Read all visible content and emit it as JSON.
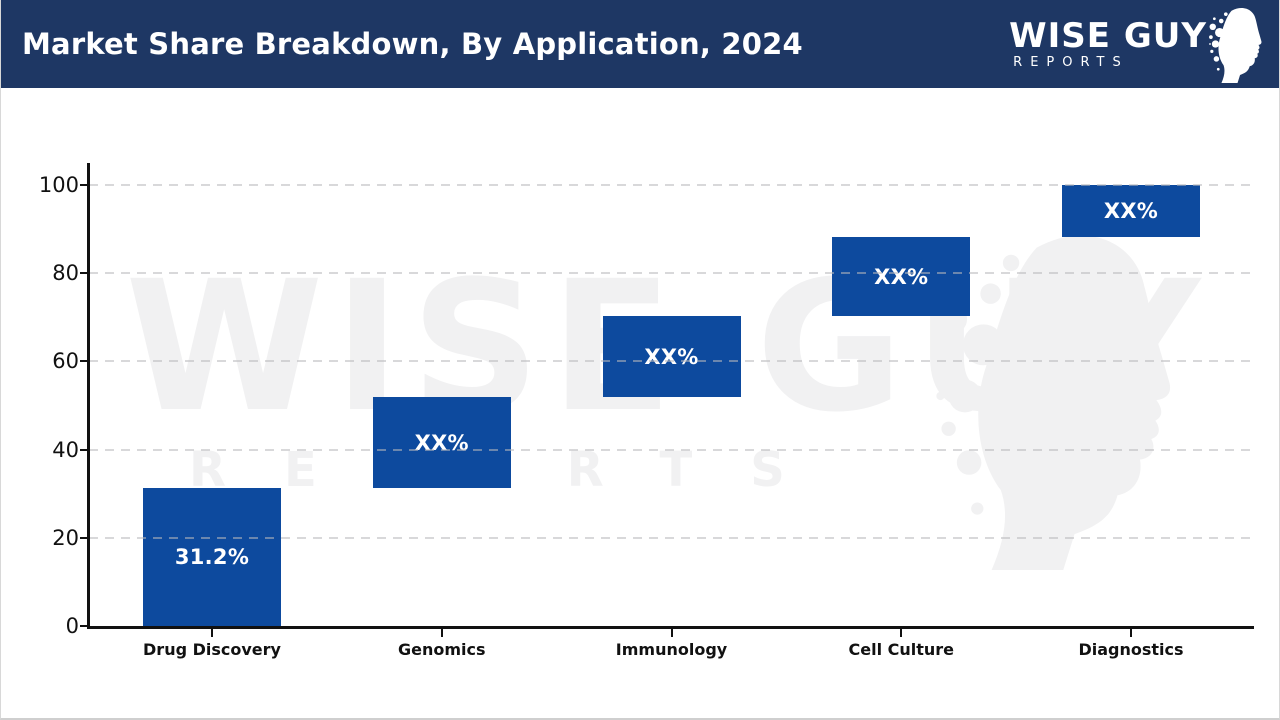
{
  "header": {
    "title": "Market Share Breakdown, By Application, 2024",
    "bg_color": "#1e3764",
    "logo": {
      "line1": "WISE GUY",
      "line2": "REPORTS"
    }
  },
  "watermark": {
    "line1": "WISE GUY",
    "line2": "REPORTS"
  },
  "chart_data": {
    "type": "bar",
    "subtype": "waterfall",
    "title": "Market Share Breakdown, By Application, 2024",
    "categories": [
      "Drug Discovery",
      "Genomics",
      "Immunology",
      "Cell Culture",
      "Diagnostics"
    ],
    "series": [
      {
        "name": "Market share by application (%)",
        "segments": [
          {
            "category": "Drug Discovery",
            "start": 0,
            "end": 31.2,
            "label": "31.2%"
          },
          {
            "category": "Genomics",
            "start": 31.2,
            "end": 52.0,
            "label": "XX%"
          },
          {
            "category": "Immunology",
            "start": 52.0,
            "end": 70.2,
            "label": "XX%"
          },
          {
            "category": "Cell Culture",
            "start": 70.2,
            "end": 88.3,
            "label": "XX%"
          },
          {
            "category": "Diagnostics",
            "start": 88.3,
            "end": 100,
            "label": "XX%"
          }
        ]
      }
    ],
    "xlabel": "",
    "ylabel": "",
    "yticks": [
      0,
      20,
      40,
      60,
      80,
      100
    ],
    "ylim": [
      0,
      105
    ],
    "grid": "horizontal-dashed",
    "legend": "none",
    "bar_color": "#0d4a9e",
    "value_label_color": "#ffffff",
    "axis_color": "#111111",
    "gridline_color": "#dcdcdc"
  }
}
